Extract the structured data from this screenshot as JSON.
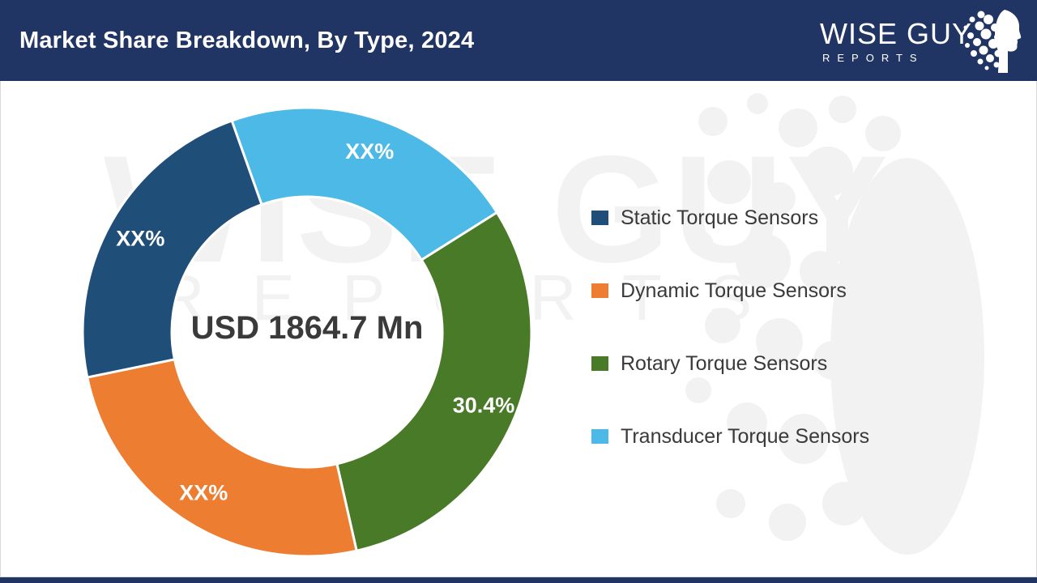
{
  "header": {
    "title": "Market Share Breakdown, By Type, 2024",
    "logo": {
      "line1": "WISE GUY",
      "line2": "REPORTS"
    }
  },
  "watermark": {
    "line1": "WISE GUY",
    "line2": "REPORTS"
  },
  "chart_data": {
    "type": "pie",
    "donut": true,
    "title": "Market Share Breakdown, By Type, 2024",
    "center_label": "USD 1864.7 Mn",
    "start_angle_deg": -19.6,
    "legend_position": "right",
    "segments": [
      {
        "label": "Transducer Torque Sensors",
        "value_pct": 21.5,
        "display_label": "XX%",
        "color": "#4CB9E7"
      },
      {
        "label": "Rotary Torque Sensors",
        "value_pct": 30.4,
        "display_label": "30.4%",
        "color": "#487A28"
      },
      {
        "label": "Dynamic Torque Sensors",
        "value_pct": 25.3,
        "display_label": "XX%",
        "color": "#ED7D31"
      },
      {
        "label": "Static Torque Sensors",
        "value_pct": 22.8,
        "display_label": "XX%",
        "color": "#1F4E79"
      }
    ],
    "legend": [
      {
        "label": "Static Torque Sensors",
        "color": "#1F4E79"
      },
      {
        "label": "Dynamic Torque Sensors",
        "color": "#ED7D31"
      },
      {
        "label": "Rotary Torque Sensors",
        "color": "#487A28"
      },
      {
        "label": "Transducer Torque Sensors",
        "color": "#4CB9E7"
      }
    ]
  },
  "colors": {
    "header_bar": "#213564",
    "footer_bar": "#213564",
    "text_dark": "#3a3a3a",
    "watermark": "#f2f2f2",
    "content_border": "#d9d9d9"
  }
}
